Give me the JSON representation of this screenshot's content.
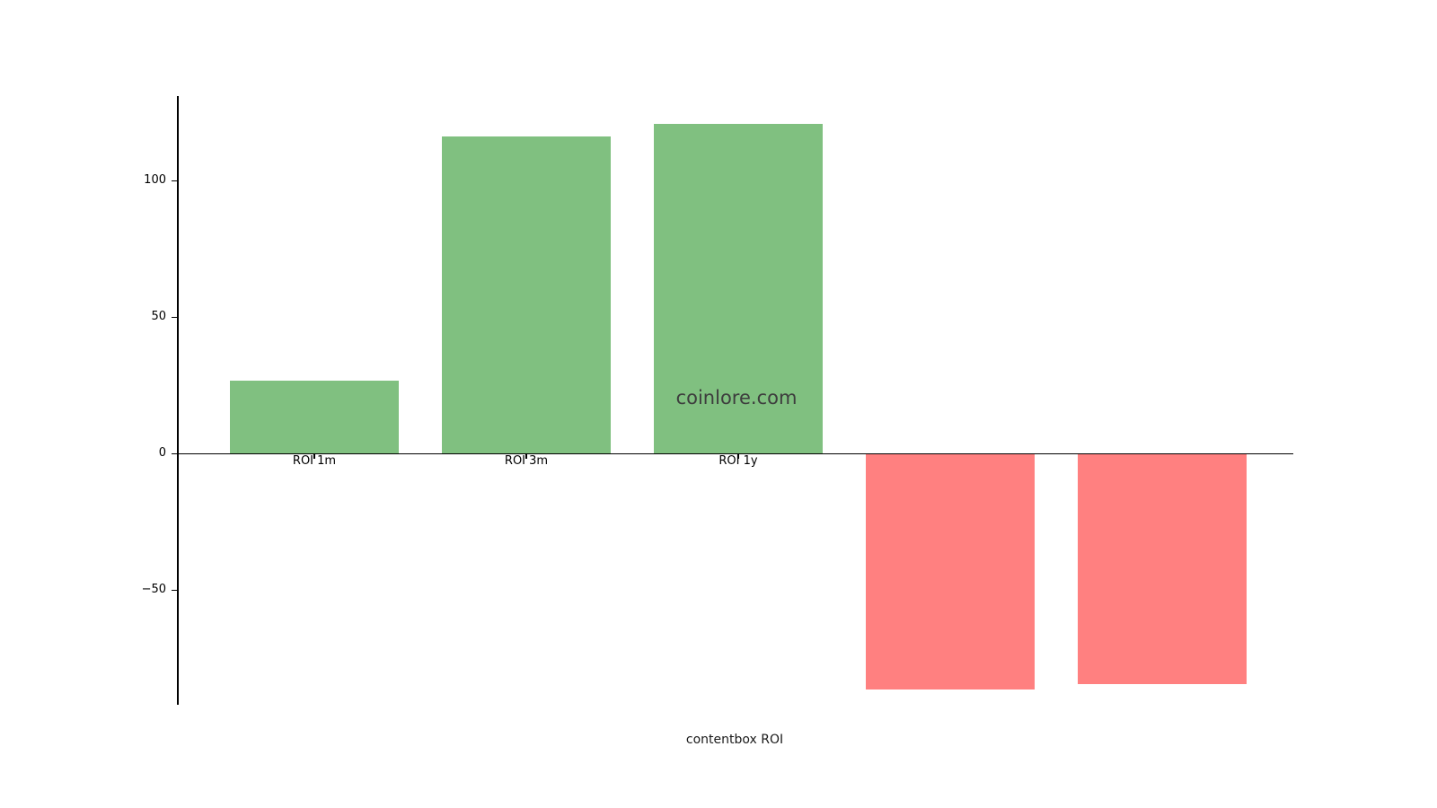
{
  "figure": {
    "background": "#ffffff"
  },
  "chart_data": {
    "type": "bar",
    "title": "contentbox ROI",
    "watermark": "coinlore.com",
    "watermark_color": "#3d3d3d",
    "categories": [
      "ROI 1m",
      "ROI 3m",
      "ROI 1y",
      "",
      ""
    ],
    "values": [
      26.7,
      116.1,
      120.7,
      -86.5,
      -84.5
    ],
    "bar_colors": [
      "#80c080",
      "#80c080",
      "#80c080",
      "#ff8080",
      "#ff8080"
    ],
    "positive_color": "#80c080",
    "negative_color": "#ff8080",
    "axis_color": "#000000",
    "yticks": [
      {
        "value": 100,
        "label": "100"
      },
      {
        "value": 50,
        "label": "50"
      },
      {
        "value": 0,
        "label": "0"
      },
      {
        "value": -50,
        "label": "−50"
      }
    ],
    "ylim": [
      -92,
      131
    ],
    "xlabel": "",
    "ylabel": "",
    "grid": false,
    "legend": null
  }
}
